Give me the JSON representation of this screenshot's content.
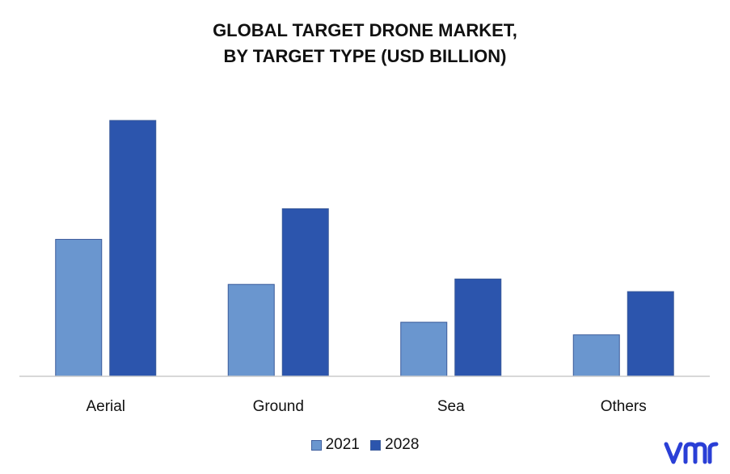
{
  "chart_data": {
    "type": "bar",
    "title": "GLOBAL TARGET DRONE MARKET,",
    "subtitle": "BY TARGET TYPE (USD BILLION)",
    "categories": [
      "Aerial",
      "Ground",
      "Sea",
      "Others"
    ],
    "series": [
      {
        "name": "2021",
        "values": [
          3.8,
          2.55,
          1.5,
          1.15
        ],
        "color": "#6a96cf"
      },
      {
        "name": "2028",
        "values": [
          7.1,
          4.65,
          2.7,
          2.35
        ],
        "color": "#2c55ad"
      }
    ],
    "ylim": [
      0,
      8
    ],
    "grid": false,
    "legend_position": "bottom"
  },
  "logo_text": "vmr",
  "colors": {
    "axis": "#cccccc",
    "logo": "#2a3fd6"
  }
}
